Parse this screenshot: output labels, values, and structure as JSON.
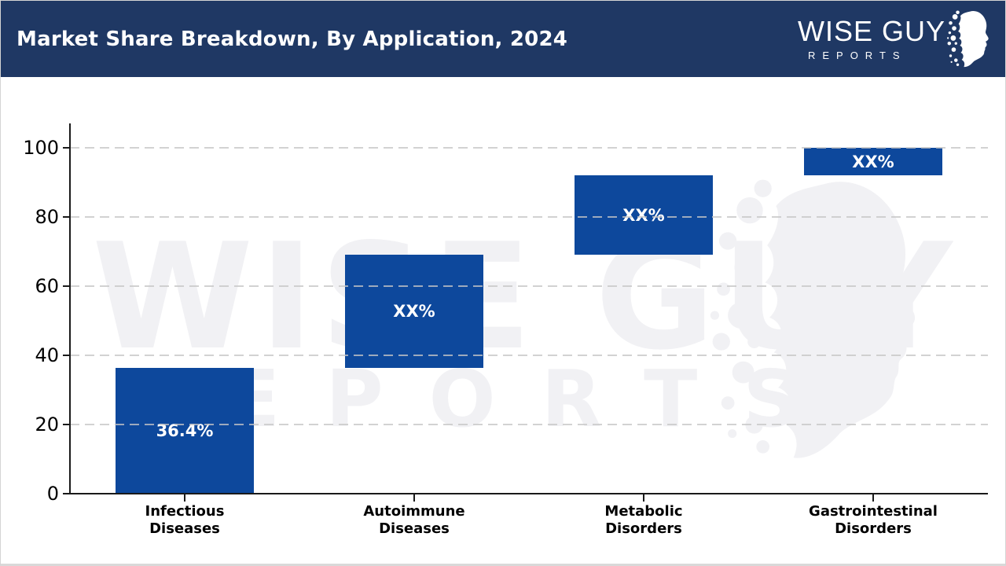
{
  "header": {
    "title": "Market Share Breakdown, By Application, 2024",
    "logo": {
      "line1": "WISE GUY",
      "line2": "REPORTS"
    }
  },
  "watermark": {
    "line1": "WISE GUY",
    "line2": "REPORTS"
  },
  "colors": {
    "header_bg": "#1f3864",
    "bar": "#0d489c",
    "grid": "#d6d6d6",
    "axis": "#1a1a1a",
    "watermark": "#f1f1f4",
    "bar_label": "#ffffff"
  },
  "chart_data": {
    "type": "bar",
    "subtype": "waterfall",
    "title": "Market Share Breakdown, By Application, 2024",
    "categories": [
      "Infectious Diseases",
      "Autoimmune Diseases",
      "Metabolic Disorders",
      "Gastrointestinal Disorders"
    ],
    "category_label_lines": [
      [
        "Infectious",
        "Diseases"
      ],
      [
        "Autoimmune",
        "Diseases"
      ],
      [
        "Metabolic",
        "Disorders"
      ],
      [
        "Gastrointestinal",
        "Disorders"
      ]
    ],
    "bars": [
      {
        "category": "Infectious Diseases",
        "start": 0,
        "end": 36.4,
        "increment": 36.4,
        "label": "36.4%"
      },
      {
        "category": "Autoimmune Diseases",
        "start": 36.4,
        "end": 69.1,
        "increment": 32.7,
        "label": "XX%"
      },
      {
        "category": "Metabolic Disorders",
        "start": 69.1,
        "end": 92.0,
        "increment": 22.9,
        "label": "XX%"
      },
      {
        "category": "Gastrointestinal Disorders",
        "start": 92.0,
        "end": 100.0,
        "increment": 8.0,
        "label": "XX%"
      }
    ],
    "xlabel": "",
    "ylabel": "",
    "ylim": [
      0,
      100
    ],
    "yticks": [
      0,
      20,
      40,
      60,
      80,
      100
    ],
    "grid": "horizontal-dashed",
    "legend": null
  }
}
